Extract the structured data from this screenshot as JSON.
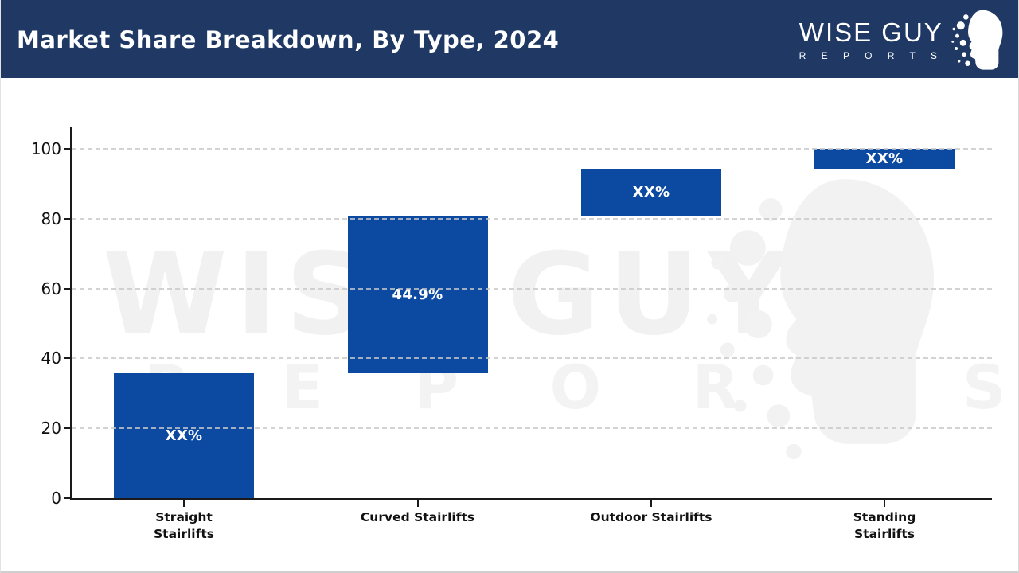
{
  "header": {
    "title": "Market Share Breakdown, By Type, 2024",
    "bg_color": "#1f3864",
    "logo": {
      "line1": "WISE GUY",
      "line2": "R E P O R T S"
    }
  },
  "watermark": {
    "line1": "WISE GUY",
    "line2": "R E P O R T S"
  },
  "chart_data": {
    "type": "bar",
    "subtype": "stacked-waterfall",
    "title": "Market Share Breakdown, By Type, 2024",
    "categories": [
      "Straight Stairlifts",
      "Curved Stairlifts",
      "Outdoor Stairlifts",
      "Standing Stairlifts"
    ],
    "category_label_lines": [
      [
        "Straight",
        "Stairlifts"
      ],
      [
        "Curved Stairlifts"
      ],
      [
        "Outdoor Stairlifts"
      ],
      [
        "Standing",
        "Stairlifts"
      ]
    ],
    "segments": [
      {
        "category": "Straight Stairlifts",
        "label": "XX%",
        "start": 0,
        "end": 35.8
      },
      {
        "category": "Curved Stairlifts",
        "label": "44.9%",
        "start": 35.8,
        "end": 80.7,
        "value": 44.9
      },
      {
        "category": "Outdoor Stairlifts",
        "label": "XX%",
        "start": 80.7,
        "end": 94.3
      },
      {
        "category": "Standing Stairlifts",
        "label": "XX%",
        "start": 94.3,
        "end": 100
      }
    ],
    "xlabel": "",
    "ylabel": "",
    "yticks": [
      0,
      20,
      40,
      60,
      80,
      100
    ],
    "ylim": [
      0,
      105
    ],
    "grid": true,
    "grid_style": "dashed",
    "legend": false,
    "bar_color": "#0c4aa2",
    "bar_label_color": "#ffffff"
  }
}
